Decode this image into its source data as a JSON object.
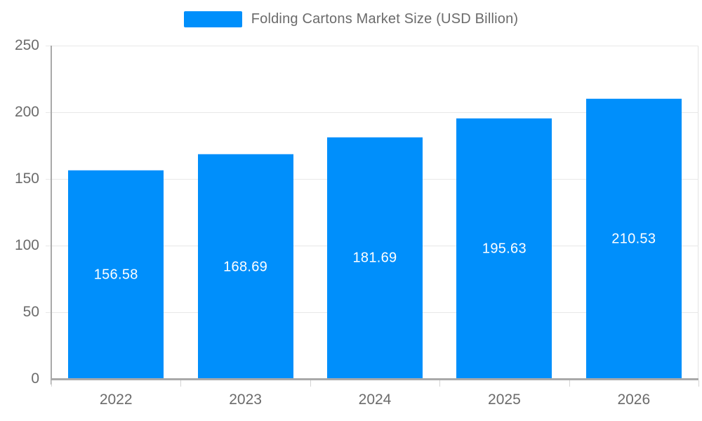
{
  "legend": {
    "label": "Folding Cartons Market Size (USD Billion)"
  },
  "chart_data": {
    "type": "bar",
    "title": "Folding Cartons Market Size (USD Billion)",
    "series_name": "Folding Cartons Market Size (USD Billion)",
    "categories": [
      "2022",
      "2023",
      "2024",
      "2025",
      "2026"
    ],
    "values": [
      156.58,
      168.69,
      181.69,
      195.63,
      210.53
    ],
    "value_labels": [
      "156.58",
      "168.69",
      "181.69",
      "195.63",
      "210.53"
    ],
    "xlabel": "",
    "ylabel": "",
    "ylim": [
      0,
      250
    ],
    "yticks": [
      0,
      50,
      100,
      150,
      200,
      250
    ],
    "grid": true,
    "legend_position": "top",
    "colors": {
      "bar": "#008FFB",
      "bar_value_text": "#ffffff",
      "axis_text": "#6b6b6b",
      "gridline": "#e8e8e8",
      "axis_line": "#a9a9a9"
    }
  }
}
